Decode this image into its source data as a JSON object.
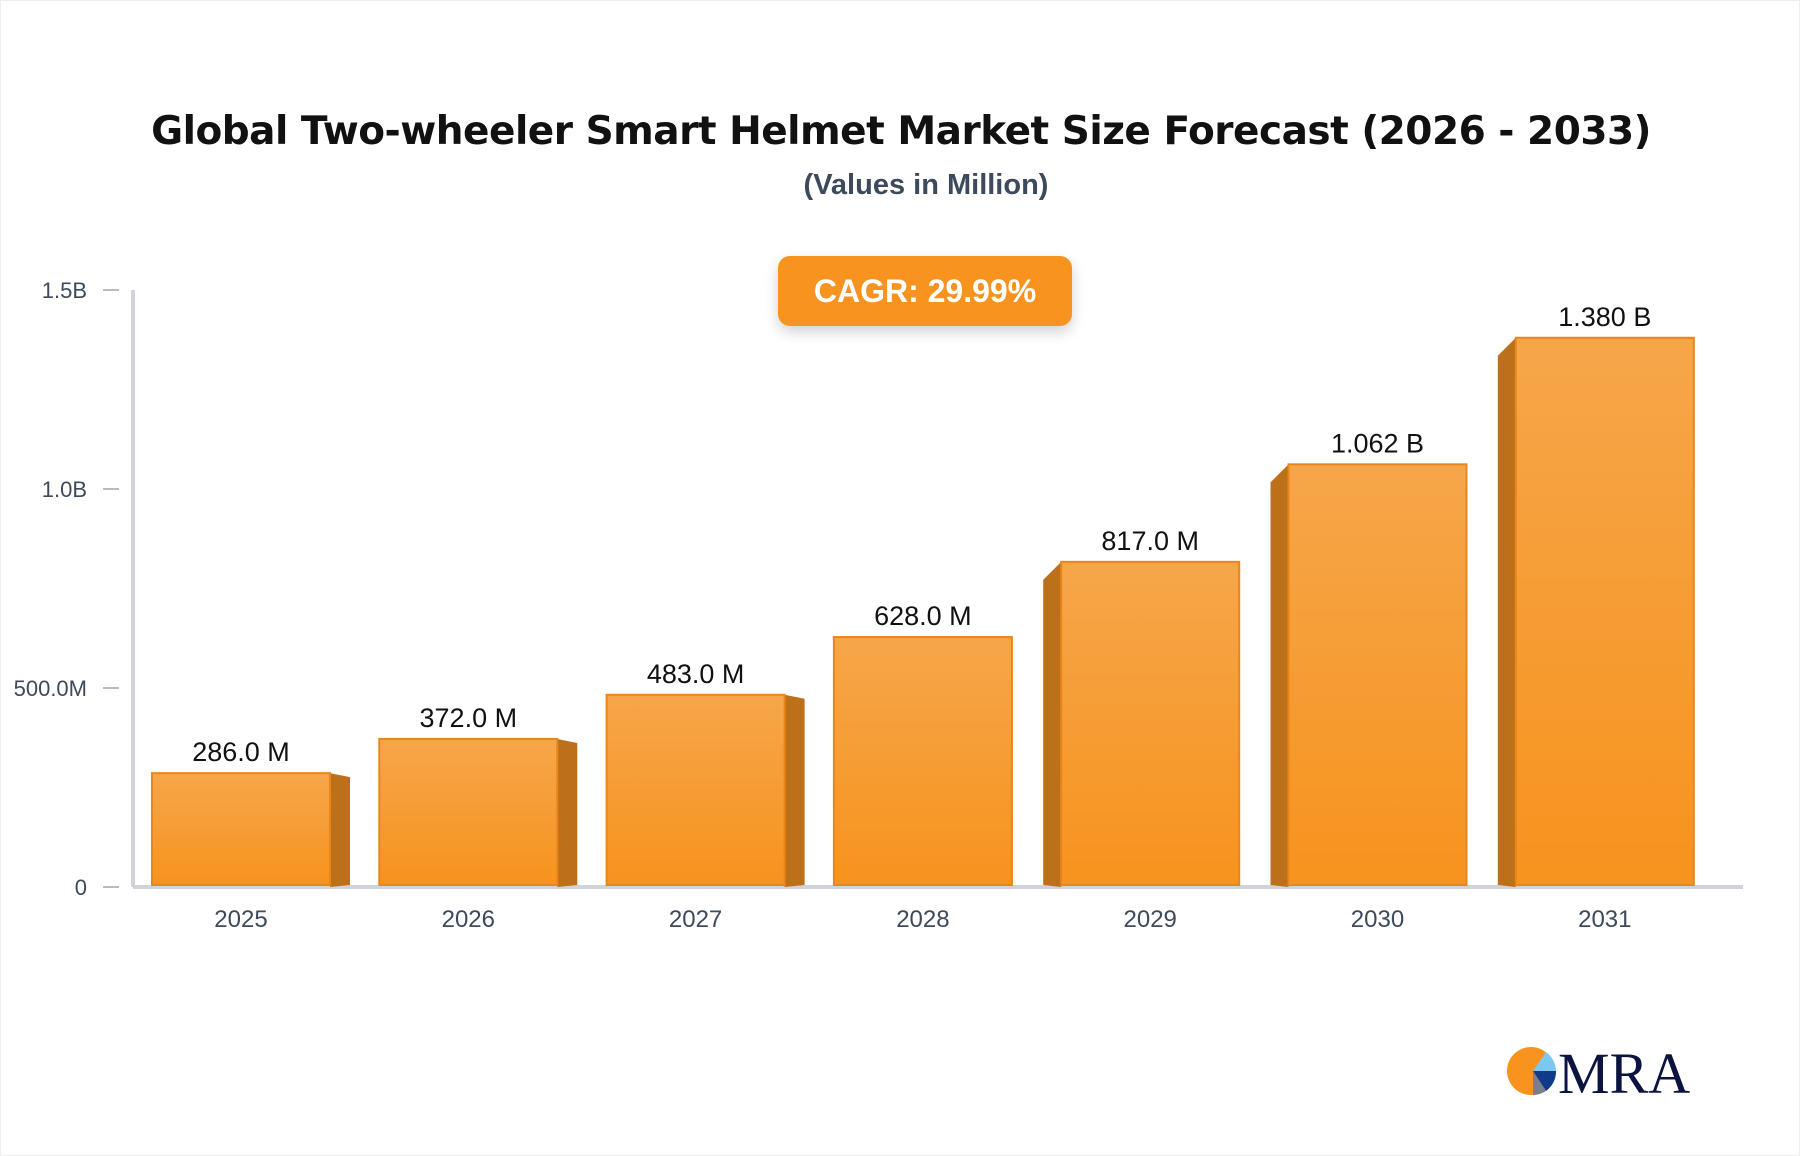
{
  "chart_data": {
    "type": "bar",
    "title": "Global Two-wheeler Smart Helmet Market Size Forecast (2026 - 2033)",
    "subtitle": "(Values in Million)",
    "categories": [
      "2025",
      "2026",
      "2027",
      "2028",
      "2029",
      "2030",
      "2031"
    ],
    "values": [
      286.0,
      372.0,
      483.0,
      628.0,
      817.0,
      1062.0,
      1380.0
    ],
    "data_labels": [
      "286.0 M",
      "372.0 M",
      "483.0 M",
      "628.0 M",
      "817.0 M",
      "1.062 B",
      "1.380 B"
    ],
    "yticks": [
      0,
      500,
      1000,
      1500
    ],
    "ytick_labels": [
      "0",
      "500.0M",
      "1.0B",
      "1.5B"
    ],
    "ylim": [
      0,
      1500
    ],
    "xlabel": "",
    "ylabel": "",
    "grid": false,
    "bar_color": "#f7931e",
    "annotation": "CAGR: 29.99%"
  },
  "logo": {
    "text": "MRA"
  }
}
